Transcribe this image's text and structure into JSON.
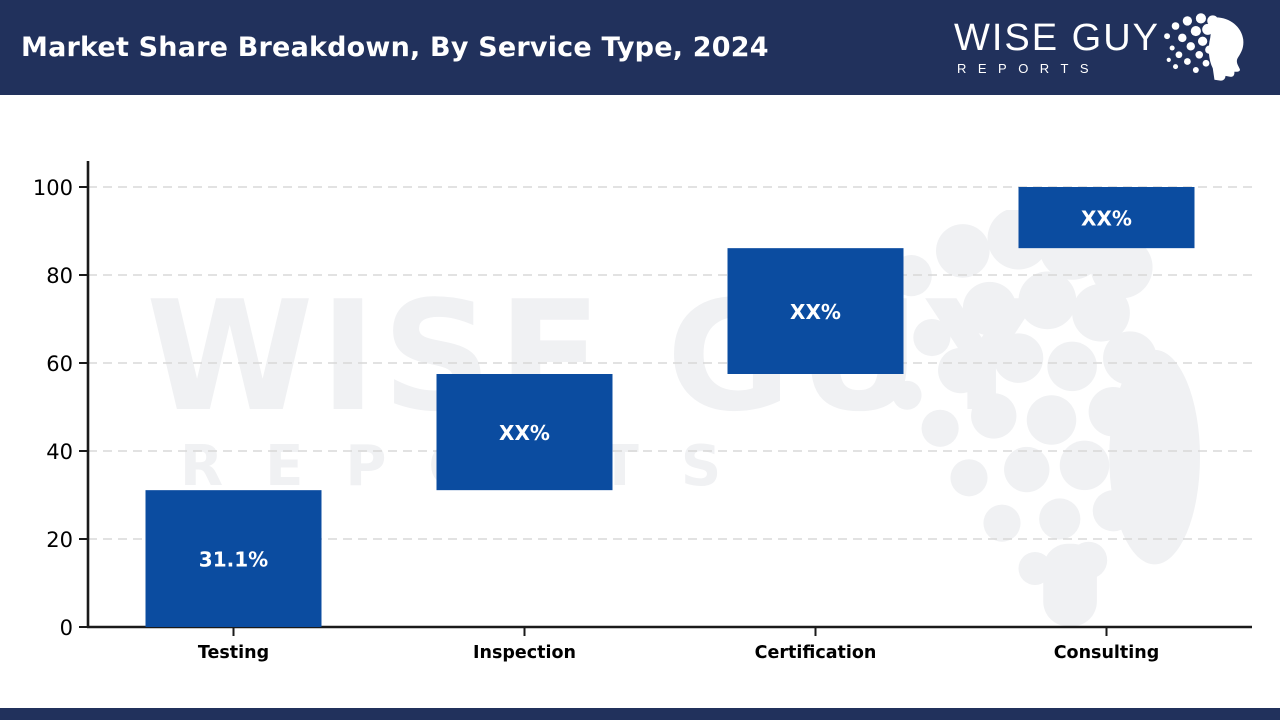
{
  "header": {
    "title": "Market Share Breakdown, By Service Type, 2024",
    "logo": {
      "line1": "WISE GUY",
      "line2": "REPORTS"
    }
  },
  "watermark": {
    "line1": "WISE GUY",
    "line2": "REPORTS"
  },
  "colors": {
    "navy": "#21315C",
    "bar_blue": "#0B4CA0",
    "grid": "#D8D8D8",
    "axis": "#1A1A1A",
    "bar_label": "#FFFFFF",
    "watermark": "#F0F1F3"
  },
  "chart_data": {
    "type": "bar",
    "subtype": "waterfall",
    "title": "Market Share Breakdown, By Service Type, 2024",
    "categories": [
      "Testing",
      "Inspection",
      "Certification",
      "Consulting"
    ],
    "segments": [
      {
        "category": "Testing",
        "start": 0,
        "end": 31.1,
        "label": "31.1%"
      },
      {
        "category": "Inspection",
        "start": 31.1,
        "end": 57.5,
        "label": "XX%"
      },
      {
        "category": "Certification",
        "start": 57.5,
        "end": 86.1,
        "label": "XX%"
      },
      {
        "category": "Consulting",
        "start": 86.1,
        "end": 100,
        "label": "XX%"
      }
    ],
    "values_pct": [
      31.1,
      26.4,
      28.6,
      13.9
    ],
    "yticks": [
      0,
      20,
      40,
      60,
      80,
      100
    ],
    "ylim": [
      0,
      100
    ],
    "xlabel": "",
    "ylabel": "",
    "grid": "horizontal-dashed",
    "legend": "none"
  }
}
